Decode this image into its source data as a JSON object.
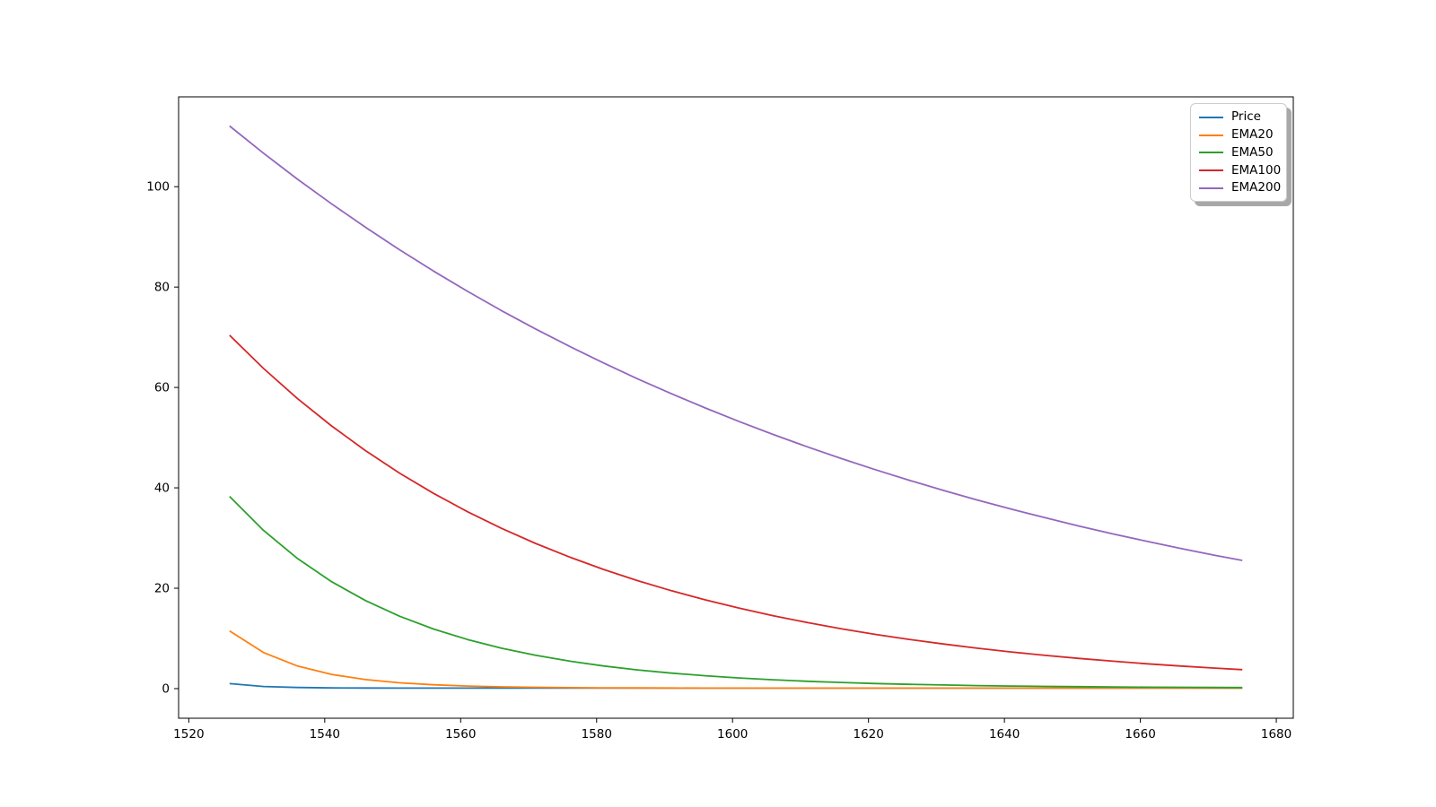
{
  "figure": {
    "background": "#ffffff",
    "axis_color": "#000000",
    "tick_label_color": "#000000"
  },
  "chart_data": {
    "type": "line",
    "title": "",
    "xlabel": "",
    "ylabel": "",
    "grid": false,
    "legend_position": "upper right",
    "xlim": [
      1518.5,
      1682.5
    ],
    "ylim": [
      -5.9,
      117.9
    ],
    "x_ticks": [
      1520,
      1540,
      1560,
      1580,
      1600,
      1620,
      1640,
      1660,
      1680
    ],
    "y_ticks": [
      0,
      20,
      40,
      60,
      80,
      100
    ],
    "x": [
      1526,
      1531,
      1536,
      1541,
      1546,
      1551,
      1556,
      1561,
      1566,
      1571,
      1576,
      1581,
      1586,
      1591,
      1596,
      1601,
      1606,
      1611,
      1616,
      1621,
      1626,
      1631,
      1636,
      1641,
      1646,
      1651,
      1656,
      1661,
      1666,
      1671,
      1675
    ],
    "series": [
      {
        "name": "Price",
        "color": "#1f77b4",
        "values": [
          1.0,
          0.43,
          0.22,
          0.14,
          0.12,
          0.11,
          0.1,
          0.1,
          0.1,
          0.1,
          0.1,
          0.1,
          0.1,
          0.1,
          0.1,
          0.1,
          0.1,
          0.1,
          0.1,
          0.1,
          0.1,
          0.1,
          0.1,
          0.1,
          0.1,
          0.1,
          0.1,
          0.1,
          0.1,
          0.1,
          0.1
        ]
      },
      {
        "name": "EMA20",
        "color": "#ff7f0e",
        "values": [
          11.5,
          7.18,
          4.5,
          2.83,
          1.8,
          1.16,
          0.76,
          0.51,
          0.35,
          0.26,
          0.2,
          0.16,
          0.14,
          0.12,
          0.11,
          0.11,
          0.1,
          0.1,
          0.1,
          0.1,
          0.1,
          0.1,
          0.1,
          0.1,
          0.1,
          0.1,
          0.1,
          0.1,
          0.1,
          0.1,
          0.1
        ]
      },
      {
        "name": "EMA50",
        "color": "#2ca02c",
        "values": [
          38.3,
          31.5,
          25.91,
          21.31,
          17.53,
          14.43,
          11.88,
          9.78,
          8.06,
          6.64,
          5.48,
          4.52,
          3.73,
          3.09,
          2.56,
          2.12,
          1.76,
          1.46,
          1.22,
          1.02,
          0.86,
          0.72,
          0.61,
          0.52,
          0.45,
          0.38,
          0.33,
          0.29,
          0.26,
          0.23,
          0.21
        ]
      },
      {
        "name": "EMA100",
        "color": "#d62728",
        "values": [
          70.4,
          63.77,
          57.77,
          52.33,
          47.41,
          42.95,
          38.91,
          35.25,
          31.94,
          28.94,
          26.22,
          23.76,
          21.53,
          19.51,
          17.68,
          16.02,
          14.52,
          13.16,
          11.93,
          10.81,
          9.81,
          8.89,
          8.06,
          7.31,
          6.63,
          6.01,
          5.46,
          4.95,
          4.49,
          4.08,
          3.78
        ]
      },
      {
        "name": "EMA200",
        "color": "#9467bd",
        "values": [
          112.1,
          106.67,
          101.49,
          96.58,
          91.9,
          87.44,
          83.19,
          79.16,
          75.32,
          71.67,
          68.2,
          64.89,
          61.74,
          58.75,
          55.91,
          53.2,
          50.62,
          48.17,
          45.84,
          43.62,
          41.51,
          39.5,
          37.59,
          35.76,
          34.04,
          32.39,
          30.82,
          29.33,
          27.91,
          26.55,
          25.54
        ]
      }
    ]
  }
}
